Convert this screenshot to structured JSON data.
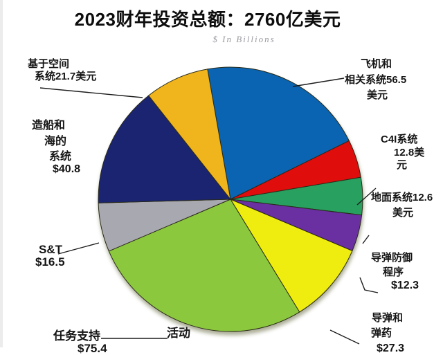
{
  "title": "2023财年投资总额：2760亿美元",
  "subtitle": "$ In Billions",
  "chart_data": {
    "type": "pie",
    "title": "2023财年投资总额：2760亿美元",
    "subtitle": "$ In Billions",
    "total_value_billions": 276,
    "start_angle_deg": 100,
    "direction": "clockwise",
    "legend_position": "around-pie-with-leader-lines",
    "slices": [
      {
        "name": "aircraft-and-related-systems",
        "label_lines": [
          "飞机和",
          "相关系统56.5",
          "美元"
        ],
        "value": 56.5,
        "color": "#0a64b1"
      },
      {
        "name": "c4i-systems",
        "label_lines": [
          "C4I系统",
          "12.8美",
          "元"
        ],
        "value": 12.8,
        "color": "#e00d0d"
      },
      {
        "name": "ground-systems",
        "label_lines": [
          "地面系统12.6",
          "美元"
        ],
        "value": 12.6,
        "color": "#28a05f"
      },
      {
        "name": "missile-defense-programs",
        "label_lines": [
          "导弹防御",
          "程序",
          "$12.3"
        ],
        "value": 12.3,
        "color": "#6a2fa0"
      },
      {
        "name": "missiles-and-munitions",
        "label_lines": [
          "导弹和",
          "弹药"
        ],
        "value": 27.3,
        "value_label": "$27.3",
        "color": "#efed10"
      },
      {
        "name": "mission-support-activities",
        "label_lines": [
          "任务支持",
          "活动"
        ],
        "value": 75.4,
        "value_label": "$75.4",
        "color": "#8cc83e"
      },
      {
        "name": "science-and-technology",
        "label_lines": [
          "S&T",
          "$16.5"
        ],
        "value": 16.5,
        "color": "#a8a8b0"
      },
      {
        "name": "shipbuilding-and-maritime-systems",
        "label_lines": [
          "造船和",
          "海的",
          "系统",
          "$40.8"
        ],
        "value": 40.8,
        "color": "#1a2470"
      },
      {
        "name": "space-based-systems",
        "label_lines": [
          "基于空间",
          "系统21.7美元"
        ],
        "value": 21.7,
        "color": "#f0b41c"
      }
    ]
  }
}
